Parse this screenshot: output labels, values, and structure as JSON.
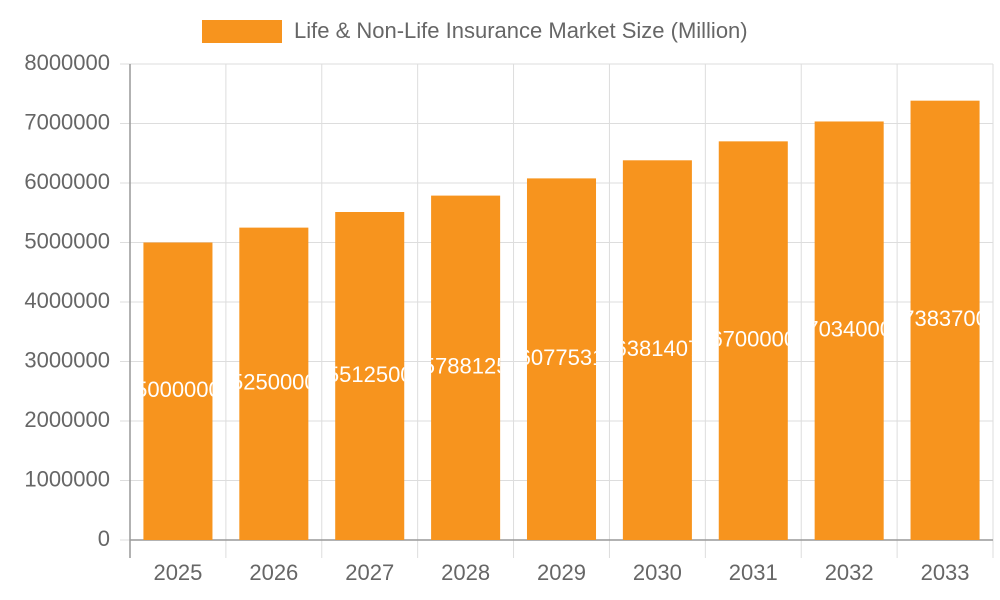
{
  "chart_data": {
    "type": "bar",
    "legend_label": "Life & Non-Life Insurance Market Size (Million)",
    "categories": [
      "2025",
      "2026",
      "2027",
      "2028",
      "2029",
      "2030",
      "2031",
      "2032",
      "2033"
    ],
    "values": [
      5000000,
      5250000,
      5512500,
      5788125,
      6077531,
      6381407,
      6700000,
      7034000,
      7383700
    ],
    "color": "#f7941e",
    "ylim": [
      0,
      8000000
    ],
    "yticks": [
      0,
      1000000,
      2000000,
      3000000,
      4000000,
      5000000,
      6000000,
      7000000,
      8000000
    ],
    "grid": true
  }
}
